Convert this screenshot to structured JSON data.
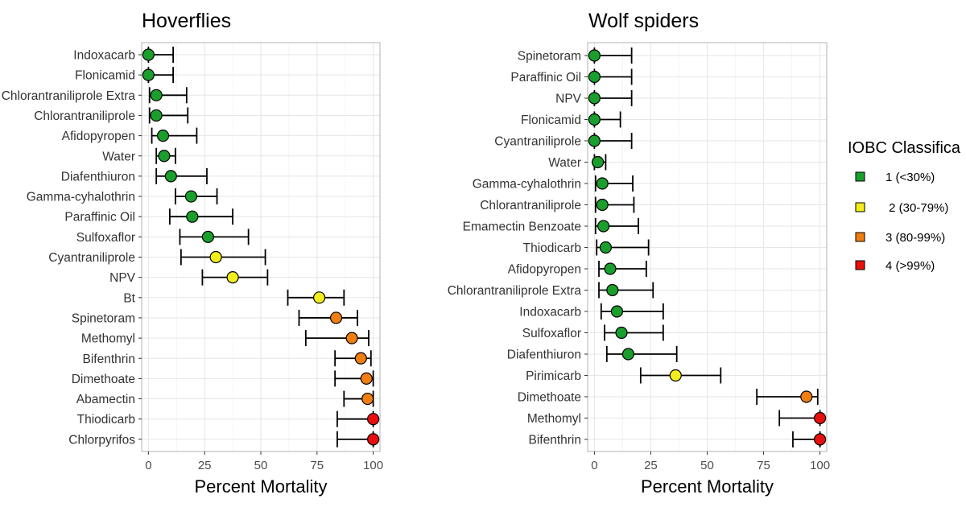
{
  "chart_data": [
    {
      "type": "scatter",
      "title": "Hoverflies",
      "xlabel": "Percent Mortality",
      "ylabel": "",
      "xlim": [
        -3,
        103
      ],
      "xticks": [
        0,
        25,
        50,
        75,
        100
      ],
      "grid": true,
      "categories": [
        "Indoxacarb",
        "Flonicamid",
        "Chlorantraniliprole Extra",
        "Chlorantraniliprole",
        "Afidopyropen",
        "Water",
        "Diafenthiuron",
        "Gamma-cyhalothrin",
        "Paraffinic Oil",
        "Sulfoxaflor",
        "Cyantraniliprole",
        "NPV",
        "Bt",
        "Spinetoram",
        "Methomyl",
        "Bifenthrin",
        "Dimethoate",
        "Abamectin",
        "Thiodicarb",
        "Chlorpyrifos"
      ],
      "points": [
        {
          "label": "Indoxacarb",
          "value": 0,
          "low": 0,
          "high": 11,
          "class": 1
        },
        {
          "label": "Flonicamid",
          "value": 0,
          "low": 0,
          "high": 11,
          "class": 1
        },
        {
          "label": "Chlorantraniliprole Extra",
          "value": 3.5,
          "low": 0.5,
          "high": 17,
          "class": 1
        },
        {
          "label": "Chlorantraniliprole",
          "value": 3.5,
          "low": 0.5,
          "high": 17.5,
          "class": 1
        },
        {
          "label": "Afidopyropen",
          "value": 6.5,
          "low": 1.5,
          "high": 21.5,
          "class": 1
        },
        {
          "label": "Water",
          "value": 7,
          "low": 3.5,
          "high": 12,
          "class": 1
        },
        {
          "label": "Diafenthiuron",
          "value": 10,
          "low": 3.5,
          "high": 26,
          "class": 1
        },
        {
          "label": "Gamma-cyhalothrin",
          "value": 19,
          "low": 12,
          "high": 30.5,
          "class": 1
        },
        {
          "label": "Paraffinic Oil",
          "value": 19.5,
          "low": 9.5,
          "high": 37.5,
          "class": 1
        },
        {
          "label": "Sulfoxaflor",
          "value": 26.5,
          "low": 14,
          "high": 44.5,
          "class": 1
        },
        {
          "label": "Cyantraniliprole",
          "value": 30,
          "low": 14.5,
          "high": 52,
          "class": 2
        },
        {
          "label": "NPV",
          "value": 37.5,
          "low": 24,
          "high": 53,
          "class": 2
        },
        {
          "label": "Bt",
          "value": 76,
          "low": 62,
          "high": 87,
          "class": 2
        },
        {
          "label": "Spinetoram",
          "value": 83.5,
          "low": 67,
          "high": 93,
          "class": 3
        },
        {
          "label": "Methomyl",
          "value": 90.5,
          "low": 70,
          "high": 98,
          "class": 3
        },
        {
          "label": "Bifenthrin",
          "value": 94.5,
          "low": 83,
          "high": 99,
          "class": 3
        },
        {
          "label": "Dimethoate",
          "value": 97,
          "low": 83,
          "high": 100,
          "class": 3
        },
        {
          "label": "Abamectin",
          "value": 97.5,
          "low": 87,
          "high": 100,
          "class": 3
        },
        {
          "label": "Thiodicarb",
          "value": 100,
          "low": 84,
          "high": 100,
          "class": 4
        },
        {
          "label": "Chlorpyrifos",
          "value": 100,
          "low": 84,
          "high": 100,
          "class": 4
        }
      ]
    },
    {
      "type": "scatter",
      "title": "Wolf spiders",
      "xlabel": "Percent Mortality",
      "ylabel": "",
      "xlim": [
        -3,
        103
      ],
      "xticks": [
        0,
        25,
        50,
        75,
        100
      ],
      "grid": true,
      "categories": [
        "Spinetoram",
        "Paraffinic Oil",
        "NPV",
        "Flonicamid",
        "Cyantraniliprole",
        "Water",
        "Gamma-cyhalothrin",
        "Chlorantraniliprole",
        "Emamectin Benzoate",
        "Thiodicarb",
        "Afidopyropen",
        "Chlorantraniliprole Extra",
        "Indoxacarb",
        "Sulfoxaflor",
        "Diafenthiuron",
        "Pirimicarb",
        "Dimethoate",
        "Methomyl",
        "Bifenthrin"
      ],
      "points": [
        {
          "label": "Spinetoram",
          "value": 0,
          "low": 0,
          "high": 16.5,
          "class": 1
        },
        {
          "label": "Paraffinic Oil",
          "value": 0,
          "low": 0,
          "high": 16.5,
          "class": 1
        },
        {
          "label": "NPV",
          "value": 0,
          "low": 0,
          "high": 16.5,
          "class": 1
        },
        {
          "label": "Flonicamid",
          "value": 0,
          "low": 0,
          "high": 11.5,
          "class": 1
        },
        {
          "label": "Cyantraniliprole",
          "value": 0,
          "low": 0,
          "high": 16.5,
          "class": 1
        },
        {
          "label": "Water",
          "value": 1.5,
          "low": 0,
          "high": 5,
          "class": 1
        },
        {
          "label": "Gamma-cyhalothrin",
          "value": 3.5,
          "low": 0.5,
          "high": 17,
          "class": 1
        },
        {
          "label": "Chlorantraniliprole",
          "value": 3.5,
          "low": 0.5,
          "high": 17.5,
          "class": 1
        },
        {
          "label": "Emamectin Benzoate",
          "value": 4,
          "low": 0.5,
          "high": 19.5,
          "class": 1
        },
        {
          "label": "Thiodicarb",
          "value": 5,
          "low": 1,
          "high": 24,
          "class": 1
        },
        {
          "label": "Afidopyropen",
          "value": 7,
          "low": 2,
          "high": 23,
          "class": 1
        },
        {
          "label": "Chlorantraniliprole Extra",
          "value": 8,
          "low": 2,
          "high": 26,
          "class": 1
        },
        {
          "label": "Indoxacarb",
          "value": 10,
          "low": 3,
          "high": 30.5,
          "class": 1
        },
        {
          "label": "Sulfoxaflor",
          "value": 12,
          "low": 4.5,
          "high": 30.5,
          "class": 1
        },
        {
          "label": "Diafenthiuron",
          "value": 15,
          "low": 5.5,
          "high": 36.5,
          "class": 1
        },
        {
          "label": "Pirimicarb",
          "value": 36,
          "low": 20.5,
          "high": 56,
          "class": 2
        },
        {
          "label": "Dimethoate",
          "value": 94,
          "low": 72,
          "high": 99,
          "class": 3
        },
        {
          "label": "Methomyl",
          "value": 100,
          "low": 82,
          "high": 100,
          "class": 4
        },
        {
          "label": "Bifenthrin",
          "value": 100,
          "low": 88,
          "high": 100,
          "class": 4
        }
      ]
    }
  ],
  "legend": {
    "title": "IOBC Classifica",
    "placement": "right",
    "items": [
      {
        "class": 1,
        "label": "1 (<30%)",
        "color": "#1a9e2c"
      },
      {
        "class": 2,
        "label": " 2 (30-79%)",
        "color": "#f2ee1c"
      },
      {
        "class": 3,
        "label": "3 (80-99%)",
        "color": "#f07e11"
      },
      {
        "class": 4,
        "label": "4 (>99%)",
        "color": "#e8100e"
      }
    ]
  }
}
